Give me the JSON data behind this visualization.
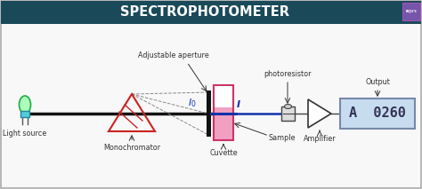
{
  "title": "SPECTROPHOTOMETER",
  "title_bg": "#1a4a5a",
  "title_color": "white",
  "bg_color": "#ffffff",
  "main_bg": "#f8f8f8",
  "border_color": "#aaaaaa",
  "labels": {
    "light_source": "Light source",
    "adjustable_aperture": "Adjustable aperture",
    "monochromator": "Monochromator",
    "cuvette": "Cuvette",
    "sample": "Sample",
    "photoresistor": "photoresistor",
    "amplifier": "Amplifier",
    "output": "Output",
    "I0": "$I_0$",
    "I": "I"
  },
  "display_text": "A  0260",
  "display_bg": "#c8dcf0",
  "display_border": "#8899bb",
  "beam_color": "#1133aa",
  "black_line": "#111111",
  "label_color": "#333333",
  "label_fs": 5.8,
  "logo_bg": "#7755aa"
}
